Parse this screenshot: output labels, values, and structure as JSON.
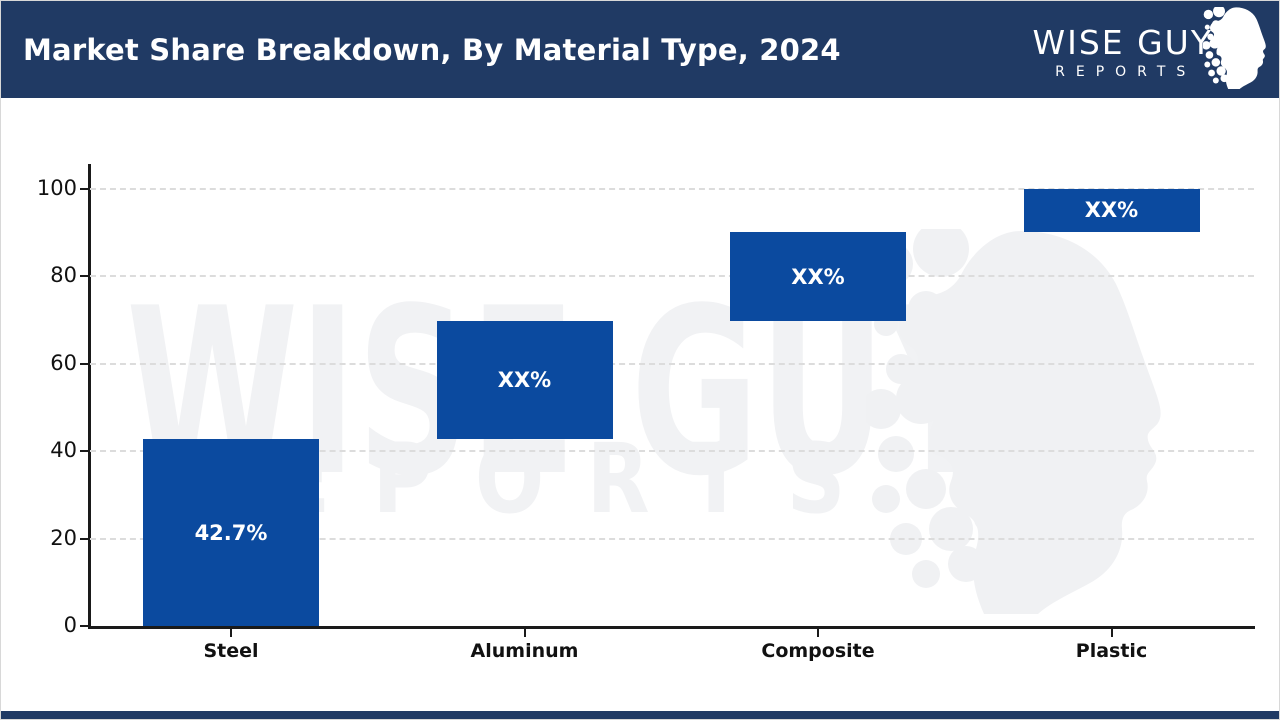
{
  "header": {
    "title": "Market Share Breakdown, By Material Type, 2024",
    "logo": {
      "line1": "WISE GUY",
      "line2": "REPORTS"
    }
  },
  "watermark": {
    "line1": "WISE GUY",
    "line2": "REPORTS"
  },
  "colors": {
    "header_bg": "#203a64",
    "bar": "#0b4a9f",
    "grid": "#dcdcdc",
    "axis": "#1a1a1a",
    "watermark": "#f1f2f4",
    "label_text": "#ffffff"
  },
  "chart_data": {
    "type": "bar",
    "subtype": "waterfall",
    "title": "Market Share Breakdown, By Material Type, 2024",
    "categories": [
      "Steel",
      "Aluminum",
      "Composite",
      "Plastic"
    ],
    "bars": [
      {
        "category": "Steel",
        "start": 0,
        "end": 42.7,
        "label": "42.7%"
      },
      {
        "category": "Aluminum",
        "start": 42.7,
        "end": 69.7,
        "label": "XX%"
      },
      {
        "category": "Composite",
        "start": 69.7,
        "end": 90,
        "label": "XX%"
      },
      {
        "category": "Plastic",
        "start": 90,
        "end": 100,
        "label": "XX%"
      }
    ],
    "xlabel": "",
    "ylabel": "",
    "yticks": [
      0,
      20,
      40,
      60,
      80,
      100
    ],
    "ylim": [
      0,
      105
    ],
    "grid": "horizontal-dashed",
    "legend": "none",
    "bar_color": "#0b4a9f"
  }
}
